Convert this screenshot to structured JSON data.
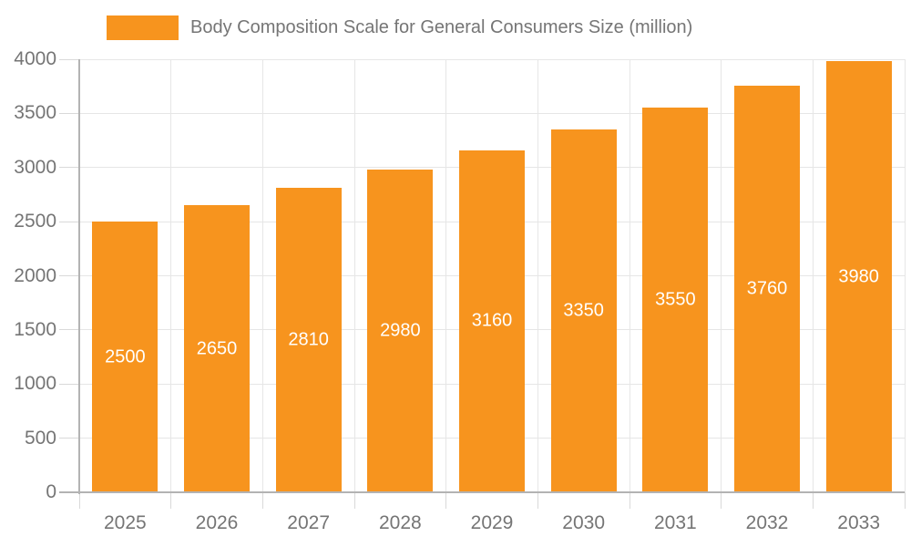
{
  "chart_data": {
    "type": "bar",
    "title": "Body Composition Scale for General Consumers Size (million)",
    "categories": [
      "2025",
      "2026",
      "2027",
      "2028",
      "2029",
      "2030",
      "2031",
      "2032",
      "2033"
    ],
    "values": [
      2500,
      2650,
      2810,
      2980,
      3160,
      3350,
      3550,
      3760,
      3980
    ],
    "series_name": "Body Composition Scale for General Consumers Size (million)",
    "xlabel": "",
    "ylabel": "",
    "ylim": [
      0,
      4000
    ],
    "ytick_step": 500,
    "ytick_labels": [
      "0",
      "500",
      "1000",
      "1500",
      "2000",
      "2500",
      "3000",
      "3500",
      "4000"
    ],
    "grid": true,
    "legend_position": "top",
    "bar_labels_visible": true,
    "colors": {
      "bar": "#f7941e",
      "bar_label": "#ffffff",
      "axis_text": "#757575",
      "grid_line": "#e6e6e6",
      "axis_line": "#b3b3b3",
      "tick_mark": "#d9d9d9",
      "background": "#ffffff"
    }
  }
}
